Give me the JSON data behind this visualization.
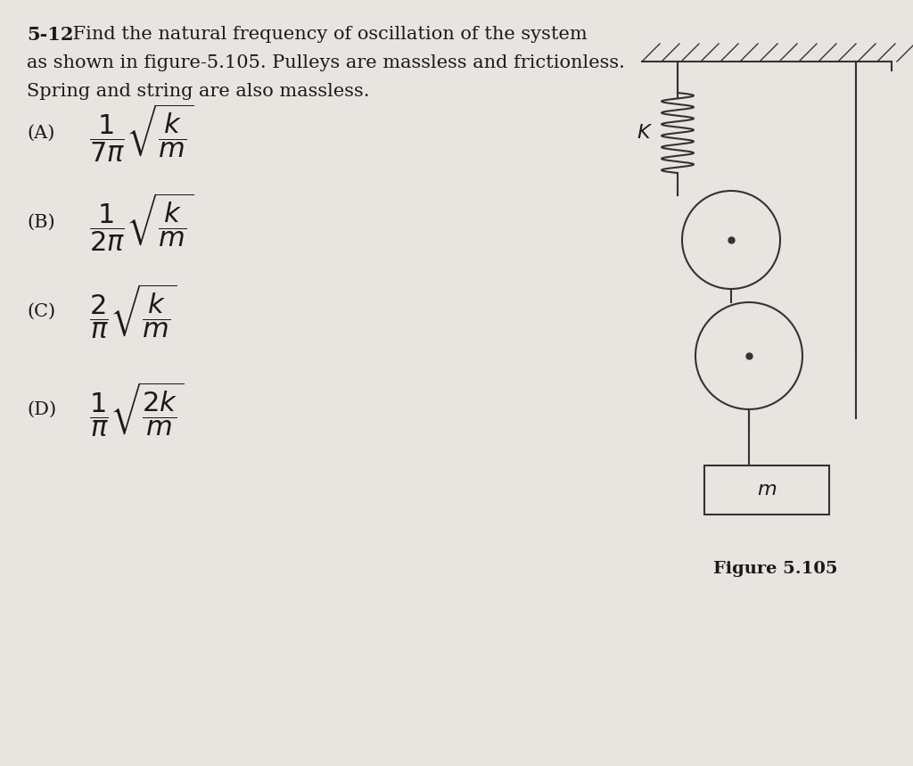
{
  "background_color": "#e8e4df",
  "text_color": "#1a1a1a",
  "title_bold": "5-12",
  "line1": " Find the natural frequency of oscillation of the system",
  "line2": "as shown in figure-5.105. Pulleys are massless and frictionless.",
  "line3": "Spring and string are also massless.",
  "opt_labels": [
    "(A)",
    "(B)",
    "(C)",
    "(D)"
  ],
  "opt_formulas": [
    "$\\dfrac{1}{7\\pi}\\sqrt{\\dfrac{k}{m}}$",
    "$\\dfrac{1}{2\\pi}\\sqrt{\\dfrac{k}{m}}$",
    "$\\dfrac{2}{\\pi}\\sqrt{\\dfrac{k}{m}}$",
    "$\\dfrac{1}{\\pi}\\sqrt{\\dfrac{2k}{m}}$"
  ],
  "figure_caption": "Figure 5.105",
  "hatch_color": "#888888",
  "line_color": "#333333",
  "spring_color": "#333333",
  "pulley_color": "#333333",
  "mass_color": "#333333"
}
